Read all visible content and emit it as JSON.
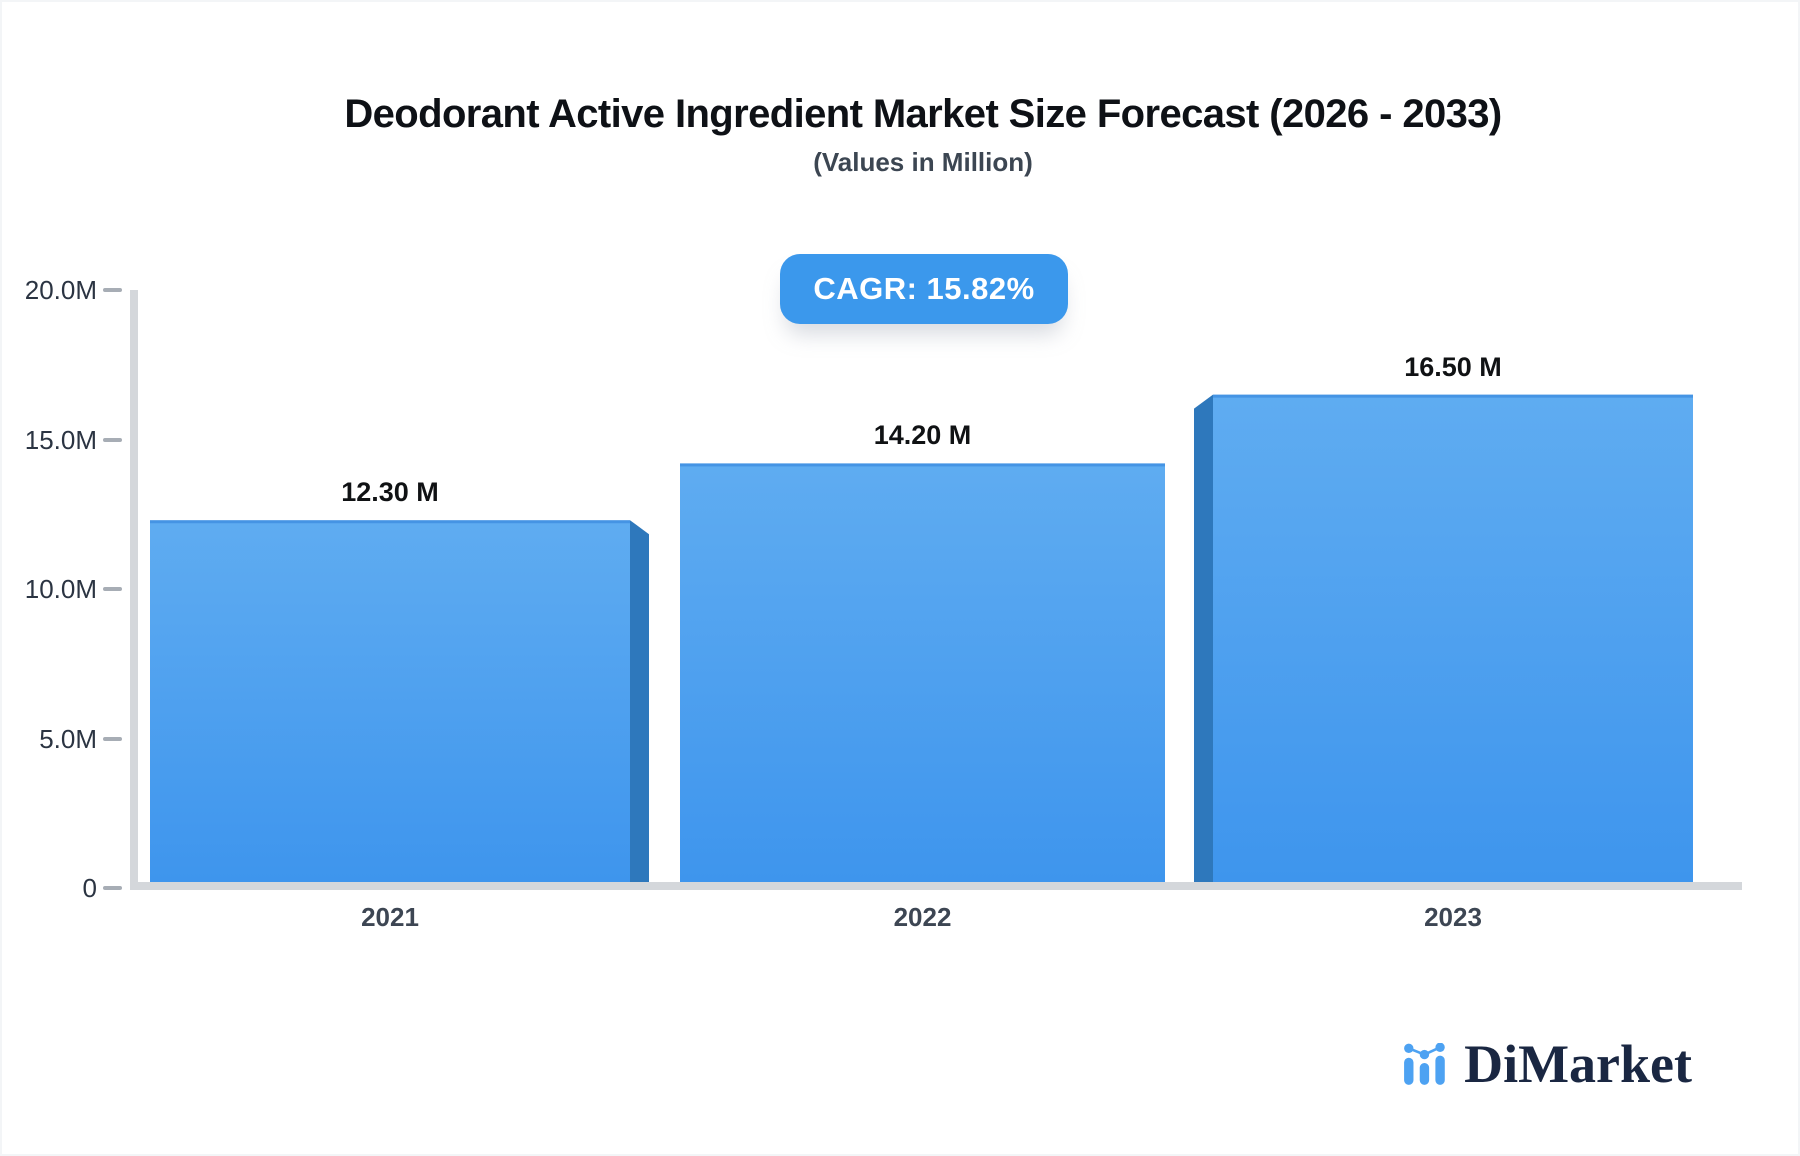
{
  "header": {
    "title": "Deodorant Active Ingredient Market Size Forecast (2026 - 2033)",
    "subtitle": "(Values in Million)",
    "cagr_label": "CAGR: 15.82%"
  },
  "chart_data": {
    "type": "bar",
    "title": "Deodorant Active Ingredient Market Size Forecast (2026 - 2033)",
    "subtitle": "(Values in Million)",
    "cagr_percent": 15.82,
    "categories": [
      "2021",
      "2022",
      "2023"
    ],
    "values": [
      12.3,
      14.2,
      16.5
    ],
    "value_labels": [
      "12.30 M",
      "14.20 M",
      "16.50 M"
    ],
    "units": "Million",
    "xlabel": "",
    "ylabel": "",
    "ylim": [
      0,
      20
    ],
    "yticks": [
      {
        "value": 0,
        "label": "0"
      },
      {
        "value": 5,
        "label": "5.0M"
      },
      {
        "value": 10,
        "label": "10.0M"
      },
      {
        "value": 15,
        "label": "15.0M"
      },
      {
        "value": 20,
        "label": "20.0M"
      }
    ],
    "grid": false,
    "legend": false,
    "bar_color_top": "#5facf1",
    "bar_color_bottom": "#3e95ed",
    "bar_top_edge_color": "#2f82d8",
    "bar_side_color": "#2e78bc",
    "axis_color": "#d4d7db",
    "badge_color": "#3b98ec"
  },
  "footer": {
    "brand": "DiMarket"
  }
}
